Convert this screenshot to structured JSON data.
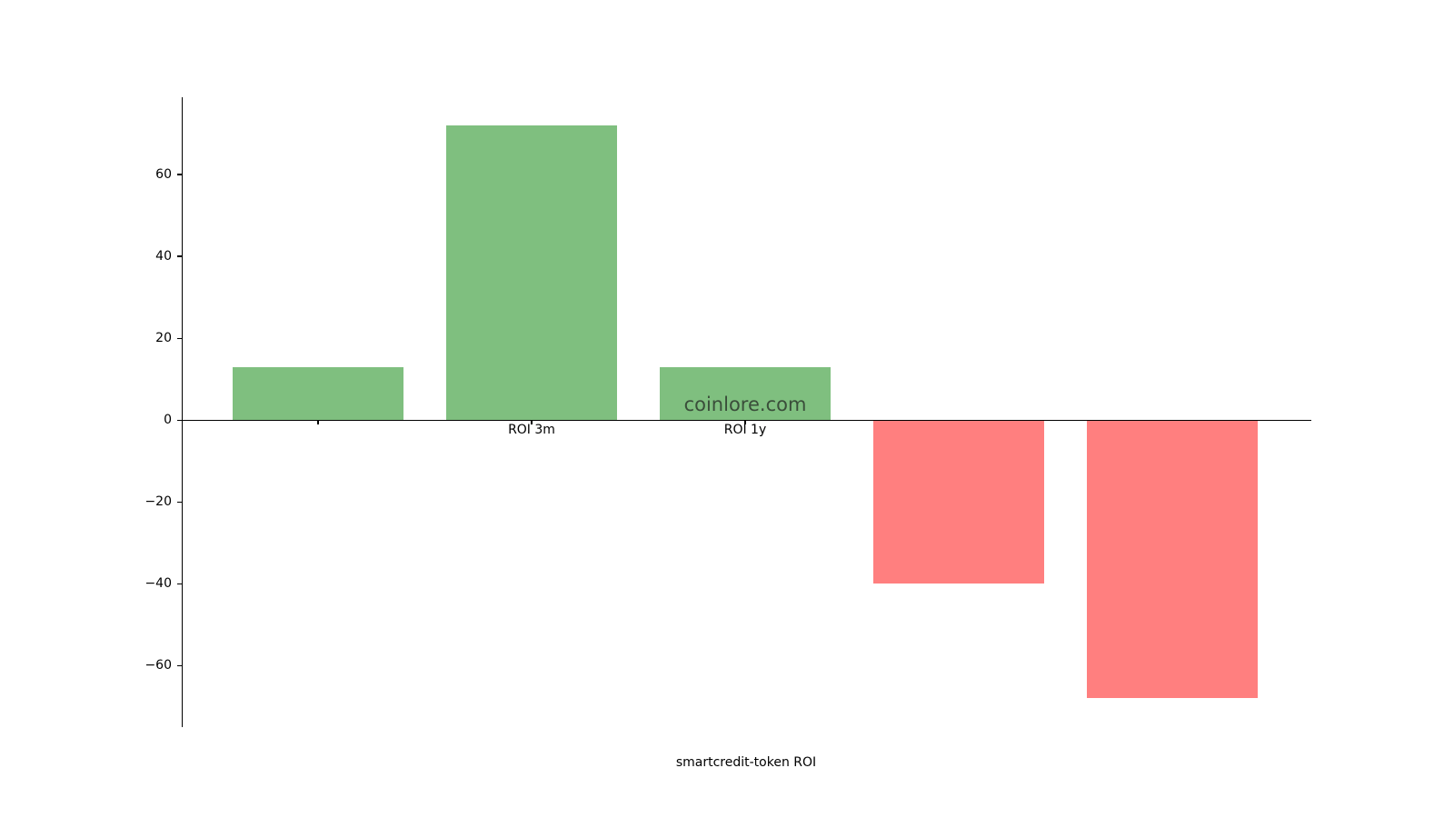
{
  "chart_data": {
    "type": "bar",
    "title": "",
    "xlabel": "smartcredit-token ROI",
    "ylabel": "",
    "categories": [
      "",
      "ROI 3m",
      "ROI 1y",
      "",
      ""
    ],
    "values": [
      13,
      72,
      13,
      -40,
      -68
    ],
    "bar_colors": [
      "#7fbf7f",
      "#7fbf7f",
      "#7fbf7f",
      "#ff7f7f",
      "#ff7f7f"
    ],
    "positive_color": "#7fbf7f",
    "negative_color": "#ff7f7f",
    "axis_color": "#000000",
    "text_color": "#000000",
    "background_color": "#ffffff",
    "ylim": [
      -75,
      79
    ],
    "yticks": [
      60,
      40,
      20,
      0,
      -20,
      -40,
      -60
    ],
    "ytick_labels": [
      "60",
      "40",
      "20",
      "0",
      "−20",
      "−40",
      "−60"
    ],
    "xticks": [
      {
        "index": 0,
        "label": ""
      },
      {
        "index": 1,
        "label": "ROI 3m"
      },
      {
        "index": 2,
        "label": "ROI 1y"
      }
    ],
    "grid": false,
    "legend": null,
    "watermark": "coinlore.com"
  }
}
